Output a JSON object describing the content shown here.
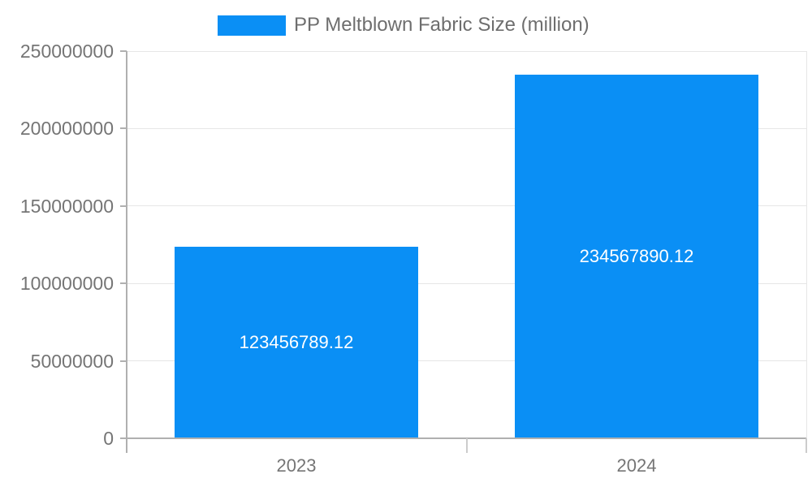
{
  "chart_data": {
    "type": "bar",
    "title": "PP Meltblown Fabric Size (million)",
    "categories": [
      "2023",
      "2024"
    ],
    "series": [
      {
        "name": "PP Meltblown Fabric Size (million)",
        "values": [
          123456789.12,
          234567890.12
        ],
        "labels": [
          "123456789.12",
          "234567890.12"
        ]
      }
    ],
    "ylabel": "",
    "xlabel": "",
    "ylim": [
      0,
      250000000
    ],
    "ytick_step": 50000000,
    "ytick_labels": [
      "0",
      "50000000",
      "100000000",
      "150000000",
      "200000000",
      "250000000"
    ],
    "grid": true,
    "legend_position": "top-center"
  },
  "legend": {
    "label": "PP Meltblown Fabric Size (million)"
  },
  "colors": {
    "bar": "#0a8ff5",
    "grid": "#e6e6e6",
    "right_border": "#e6e6e6",
    "axis": "#b0b0b0",
    "boundary_tick": "#cccccc",
    "axis_text": "#757575",
    "title_text": "#6e6e6e",
    "bar_label_text": "#ffffff",
    "background": "#ffffff"
  }
}
